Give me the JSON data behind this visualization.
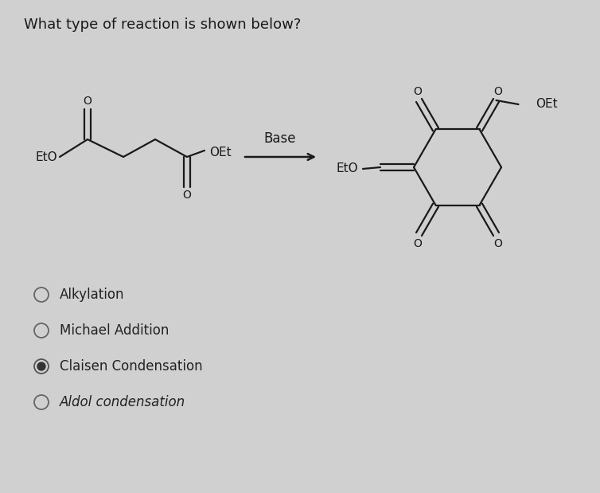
{
  "title": "What type of reaction is shown below?",
  "title_fontsize": 13,
  "background_color": "#d0d0d0",
  "text_color": "#222222",
  "options": [
    {
      "label": "Alkylation",
      "selected": false,
      "style": "normal"
    },
    {
      "label": "Michael Addition",
      "selected": false,
      "style": "normal"
    },
    {
      "label": "Claisen Condensation",
      "selected": true,
      "style": "normal"
    },
    {
      "label": "Aldol condensation",
      "selected": false,
      "style": "italic"
    }
  ],
  "reaction_arrow_label": "Base",
  "fig_width": 7.54,
  "fig_height": 6.19,
  "dpi": 100
}
